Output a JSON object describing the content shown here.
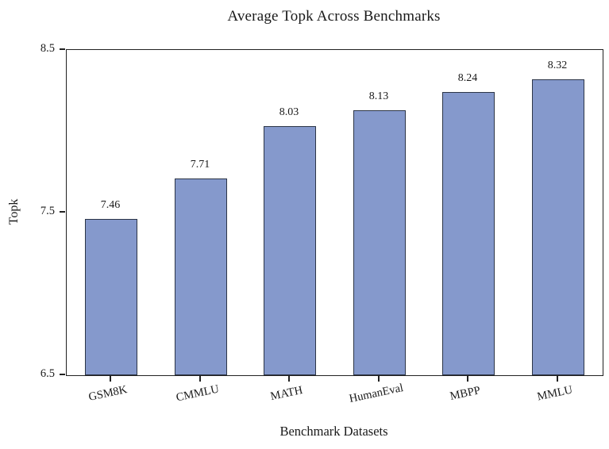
{
  "chart_data": {
    "type": "bar",
    "title": "Average Topk Across Benchmarks",
    "xlabel": "Benchmark Datasets",
    "ylabel": "Topk",
    "categories": [
      "GSM8K",
      "CMMLU",
      "MATH",
      "HumanEval",
      "MBPP",
      "MMLU"
    ],
    "values": [
      7.46,
      7.71,
      8.03,
      8.13,
      8.24,
      8.32
    ],
    "value_labels": [
      "7.46",
      "7.71",
      "8.03",
      "8.13",
      "8.24",
      "8.32"
    ],
    "ylim": [
      6.5,
      8.5
    ],
    "yticks": [
      6.5,
      7.5,
      8.5
    ],
    "ytick_labels": [
      "6.5",
      "7.5",
      "8.5"
    ],
    "grid": false,
    "legend": null,
    "colors": {
      "bar_fill": "#8599cc",
      "bar_edge": "#2c3547",
      "spine": "#212121",
      "text": "#1a1a1a",
      "background": "#ffffff"
    }
  }
}
